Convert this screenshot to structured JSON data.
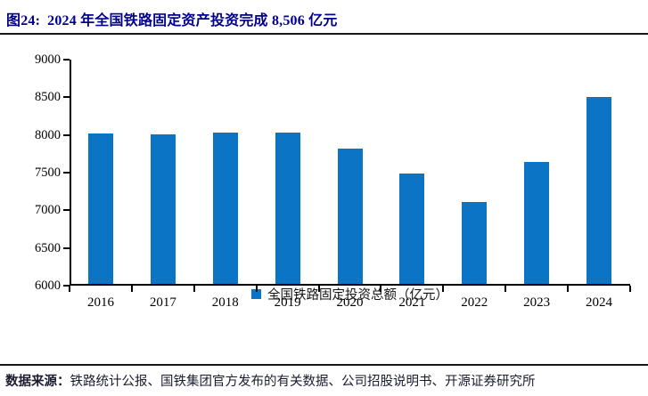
{
  "header": {
    "title_label": "图24:",
    "title_text": "2024 年全国铁路固定资产投资完成 8,506 亿元"
  },
  "chart_data": {
    "type": "bar",
    "title": "图24: 2024 年全国铁路固定资产投资完成 8,506 亿元",
    "categories": [
      "2016",
      "2017",
      "2018",
      "2019",
      "2020",
      "2021",
      "2022",
      "2023",
      "2024"
    ],
    "values": [
      8015,
      8010,
      8028,
      8029,
      7819,
      7489,
      7109,
      7645,
      8506
    ],
    "series_name": "全国铁路固定投资总额（亿元）",
    "xlabel": "",
    "ylabel": "",
    "ylim": [
      6000,
      9000
    ],
    "ytick_step": 500,
    "yticks": [
      6000,
      6500,
      7000,
      7500,
      8000,
      8500,
      9000
    ],
    "grid": false,
    "legend_position": "bottom",
    "bar_color": "#0B74C4"
  },
  "legend": {
    "label": "全国铁路固定投资总额（亿元）",
    "marker_color": "#0B74C4"
  },
  "footer": {
    "source_label": "数据来源：",
    "source_text": "铁路统计公报、国铁集团官方发布的有关数据、公司招股说明书、开源证券研究所"
  },
  "colors": {
    "title": "#00008B",
    "bar": "#0B74C4",
    "axis": "#000000",
    "rule": "#161616"
  }
}
